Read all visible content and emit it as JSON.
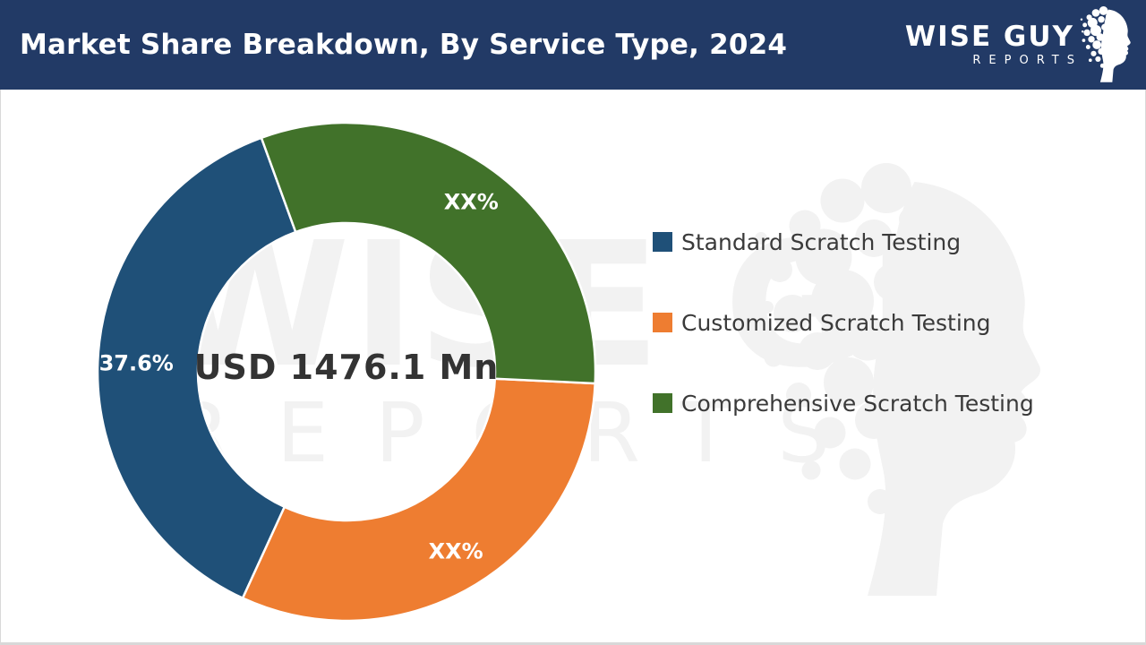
{
  "header": {
    "title": "Market Share Breakdown, By Service Type, 2024",
    "logo": {
      "name": "WISE GUY",
      "sub": "REPORTS"
    }
  },
  "watermark": {
    "line1": "WISE GU",
    "line2": "REPORTS"
  },
  "chart_data": {
    "type": "pie",
    "subtype": "donut",
    "title": "Market Share Breakdown, By Service Type, 2024",
    "center_label": "USD 1476.1 Mn",
    "categories": [
      "Standard Scratch Testing",
      "Customized Scratch Testing",
      "Comprehensive Scratch Testing"
    ],
    "values": [
      37.6,
      31.1,
      31.3
    ],
    "slice_labels": [
      "37.6%",
      "XX%",
      "XX%"
    ],
    "colors": [
      "#1F5078",
      "#EE7D31",
      "#41722A"
    ],
    "start_angle": 110,
    "direction": "counterclockwise",
    "inner_radius_ratio": 0.6,
    "legend_position": "right",
    "label_text_color": "#ffffff",
    "center_text_color": "#333333"
  }
}
